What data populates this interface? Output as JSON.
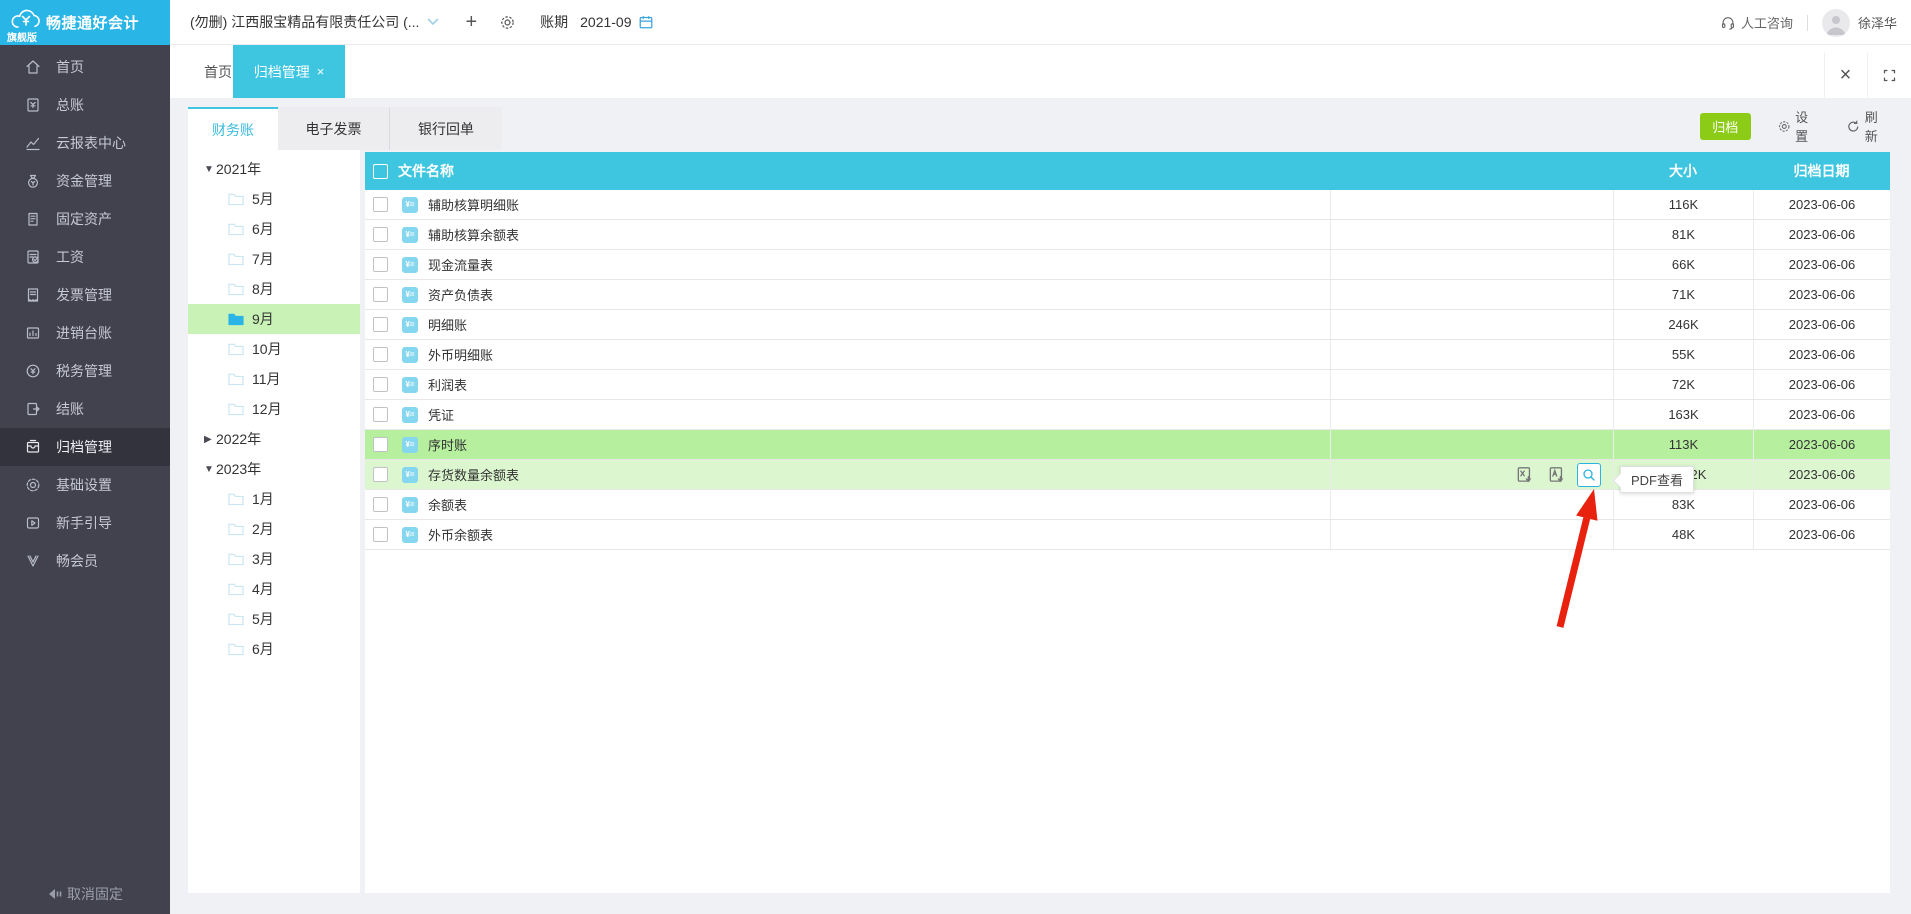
{
  "brand": {
    "name": "畅捷通好会计",
    "edition": "旗舰版"
  },
  "topbar": {
    "company": "(勿删) 江西服宝精品有限责任公司 (...",
    "plus": "+",
    "period_label": "账期",
    "period": "2021-09",
    "help": "人工咨询",
    "user": "徐泽华"
  },
  "tabs": {
    "home": "首页",
    "active": "归档管理",
    "close": "×"
  },
  "subtabs": [
    {
      "label": "财务账",
      "active": true
    },
    {
      "label": "电子发票",
      "active": false
    },
    {
      "label": "银行回单",
      "active": false
    }
  ],
  "toolbar": {
    "archive": "归档",
    "settings": "设置",
    "refresh": "刷新"
  },
  "sidebar": {
    "items": [
      {
        "label": "首页",
        "icon": "home-icon"
      },
      {
        "label": "总账",
        "icon": "ledger-icon"
      },
      {
        "label": "云报表中心",
        "icon": "cloud-report-icon"
      },
      {
        "label": "资金管理",
        "icon": "funds-icon"
      },
      {
        "label": "固定资产",
        "icon": "fixed-assets-icon"
      },
      {
        "label": "工资",
        "icon": "salary-icon"
      },
      {
        "label": "发票管理",
        "icon": "invoice-icon"
      },
      {
        "label": "进销台账",
        "icon": "inventory-ledger-icon"
      },
      {
        "label": "税务管理",
        "icon": "tax-icon"
      },
      {
        "label": "结账",
        "icon": "closing-icon"
      },
      {
        "label": "归档管理",
        "icon": "archive-icon",
        "active": true
      },
      {
        "label": "基础设置",
        "icon": "settings-icon"
      },
      {
        "label": "新手引导",
        "icon": "guide-icon"
      },
      {
        "label": "畅会员",
        "icon": "member-icon"
      }
    ],
    "unpin": "取消固定"
  },
  "tree": {
    "items": [
      {
        "label": "2021年",
        "type": "year",
        "state": "expanded"
      },
      {
        "label": "5月",
        "type": "month",
        "state": ""
      },
      {
        "label": "6月",
        "type": "month",
        "state": ""
      },
      {
        "label": "7月",
        "type": "month",
        "state": ""
      },
      {
        "label": "8月",
        "type": "month",
        "state": ""
      },
      {
        "label": "9月",
        "type": "month",
        "state": "selected"
      },
      {
        "label": "10月",
        "type": "month",
        "state": ""
      },
      {
        "label": "11月",
        "type": "month",
        "state": ""
      },
      {
        "label": "12月",
        "type": "month",
        "state": ""
      },
      {
        "label": "2022年",
        "type": "year",
        "state": "collapsed"
      },
      {
        "label": "2023年",
        "type": "year",
        "state": "expanded"
      },
      {
        "label": "1月",
        "type": "month",
        "state": ""
      },
      {
        "label": "2月",
        "type": "month",
        "state": ""
      },
      {
        "label": "3月",
        "type": "month",
        "state": ""
      },
      {
        "label": "4月",
        "type": "month",
        "state": ""
      },
      {
        "label": "5月",
        "type": "month",
        "state": ""
      },
      {
        "label": "6月",
        "type": "month",
        "state": ""
      }
    ]
  },
  "table": {
    "columns": {
      "name": "文件名称",
      "size": "大小",
      "date": "归档日期"
    },
    "rows": [
      {
        "name": "辅助核算明细账",
        "size": "116K",
        "date": "2023-06-06",
        "state": ""
      },
      {
        "name": "辅助核算余额表",
        "size": "81K",
        "date": "2023-06-06",
        "state": ""
      },
      {
        "name": "现金流量表",
        "size": "66K",
        "date": "2023-06-06",
        "state": ""
      },
      {
        "name": "资产负债表",
        "size": "71K",
        "date": "2023-06-06",
        "state": ""
      },
      {
        "name": "明细账",
        "size": "246K",
        "date": "2023-06-06",
        "state": ""
      },
      {
        "name": "外币明细账",
        "size": "55K",
        "date": "2023-06-06",
        "state": ""
      },
      {
        "name": "利润表",
        "size": "72K",
        "date": "2023-06-06",
        "state": ""
      },
      {
        "name": "凭证",
        "size": "163K",
        "date": "2023-06-06",
        "state": ""
      },
      {
        "name": "序时账",
        "size": "113K",
        "date": "2023-06-06",
        "state": "selected"
      },
      {
        "name": "存货数量余额表",
        "size": "2K",
        "date": "2023-06-06",
        "state": "hover",
        "show_actions": true,
        "size_shifted": true
      },
      {
        "name": "余额表",
        "size": "83K",
        "date": "2023-06-06",
        "state": ""
      },
      {
        "name": "外币余额表",
        "size": "48K",
        "date": "2023-06-06",
        "state": ""
      }
    ]
  },
  "tooltip": {
    "text": "PDF查看"
  },
  "colors": {
    "accent_cyan": "#3ec6e0",
    "logo_cyan": "#29b5e6",
    "sidebar_bg": "#42424f",
    "sidebar_active_bg": "#33333d",
    "archive_green": "#8ccc17",
    "row_selected": "#b6ef9e",
    "row_hover": "#dcf7cf",
    "tree_selected": "#c9f2b6",
    "arrow_red": "#e8220e"
  }
}
